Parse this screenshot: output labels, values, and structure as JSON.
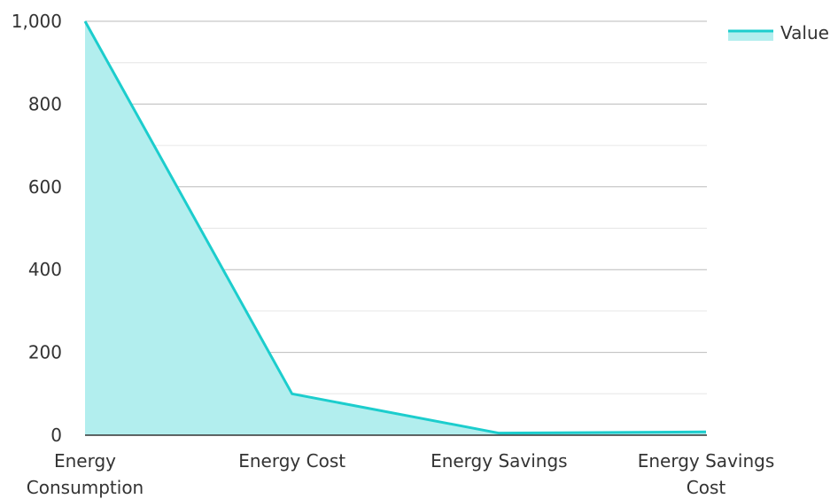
{
  "chart_data": {
    "type": "area",
    "categories": [
      "Energy Consumption",
      "Energy Cost",
      "Energy Savings",
      "Energy Savings Cost"
    ],
    "series": [
      {
        "name": "Value",
        "values": [
          1000,
          100,
          5,
          8
        ]
      }
    ],
    "title": "",
    "xlabel": "",
    "ylabel": "",
    "ylim": [
      0,
      1000
    ],
    "yticks": [
      0,
      200,
      400,
      600,
      800,
      1000
    ],
    "ytick_labels": [
      "0",
      "200",
      "400",
      "600",
      "800",
      "1,000"
    ],
    "grid": true,
    "legend": {
      "position": "top-right",
      "entries": [
        "Value"
      ]
    },
    "colors": {
      "line": "#1ccdcd",
      "fill": "#b2eeee",
      "grid": "#bbbbbb",
      "grid_minor": "#e6e6e6",
      "axis": "#333333"
    }
  }
}
